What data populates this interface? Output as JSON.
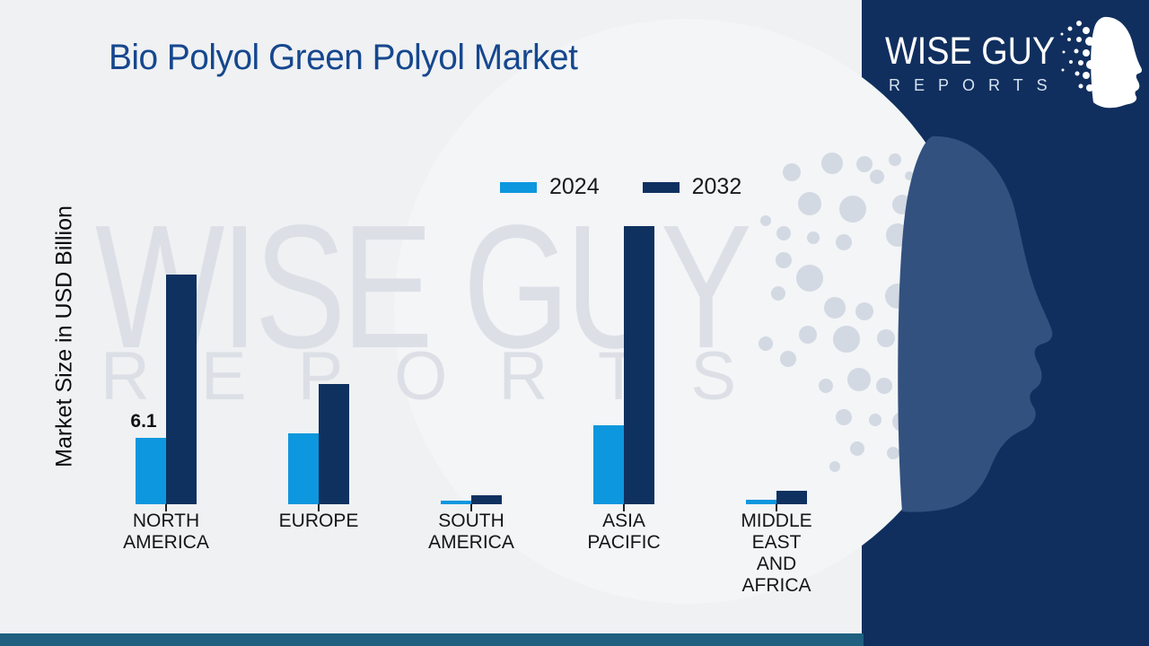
{
  "header": {
    "title": "Bio Polyol Green Polyol Market"
  },
  "logo": {
    "brand_top": "WISE GUY",
    "brand_bottom": "REPORTS"
  },
  "watermark": {
    "line1": "WISE GUY",
    "line2": "REPORTS"
  },
  "footer": {},
  "chart_data": {
    "type": "bar",
    "title": "Bio Polyol Green Polyol Market",
    "xlabel": "",
    "ylabel": "Market Size in USD Billion",
    "categories": [
      "NORTH AMERICA",
      "EUROPE",
      "SOUTH AMERICA",
      "ASIA PACIFIC",
      "MIDDLE EAST AND AFRICA"
    ],
    "category_lines": [
      [
        "NORTH",
        "AMERICA"
      ],
      [
        "EUROPE"
      ],
      [
        "SOUTH",
        "AMERICA"
      ],
      [
        "ASIA",
        "PACIFIC"
      ],
      [
        "MIDDLE",
        "EAST",
        "AND",
        "AFRICA"
      ]
    ],
    "series": [
      {
        "name": "2024",
        "color": "#0d97de",
        "values": [
          6.1,
          6.5,
          0.3,
          7.3,
          0.4
        ]
      },
      {
        "name": "2032",
        "color": "#0e3160",
        "values": [
          21.1,
          11.1,
          0.8,
          25.6,
          1.2
        ]
      }
    ],
    "ylim": [
      0,
      27
    ],
    "grid": false,
    "legend_position": "top",
    "annotations": [
      {
        "text": "6.1",
        "category_index": 0,
        "series_index": 0
      }
    ]
  },
  "colors": {
    "background": "#eff1f3",
    "brand_panel": "#102f5e",
    "footer_strip": "#1f6080",
    "title_blue": "#16478e",
    "watermark_gray": "#dce0e6",
    "bar_2024": "#0d97de",
    "bar_2032": "#0e3160",
    "face_silhouette": "#33517f",
    "dot_pattern": "#d3d9e2"
  }
}
